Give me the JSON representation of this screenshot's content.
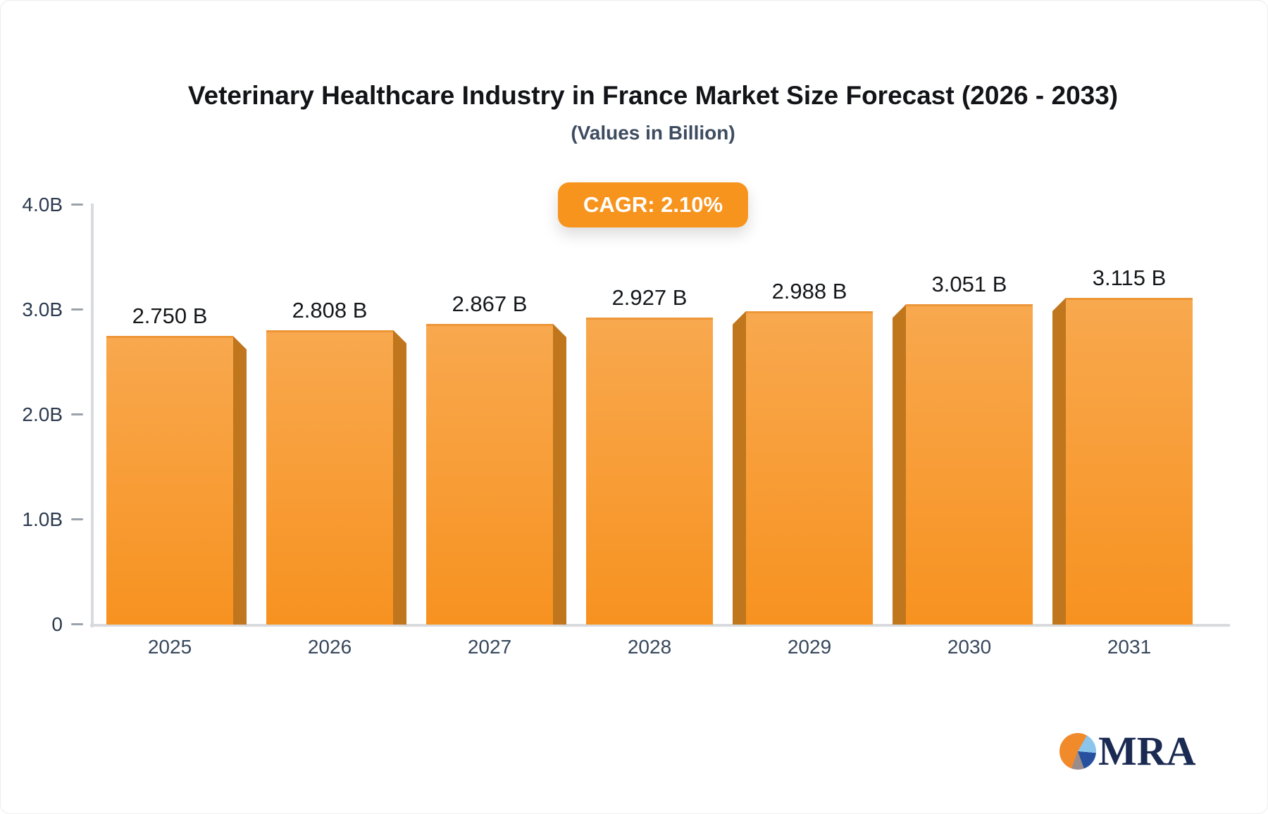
{
  "header": {
    "title": "Veterinary Healthcare Industry in France Market Size Forecast (2026 - 2033)",
    "subtitle": "(Values in Billion)",
    "cagr_label": "CAGR: 2.10%"
  },
  "chart_data": {
    "type": "bar",
    "title": "Veterinary Healthcare Industry in France Market Size Forecast (2026 - 2033)",
    "subtitle": "(Values in Billion)",
    "cagr": "2.10%",
    "categories": [
      "2025",
      "2026",
      "2027",
      "2028",
      "2029",
      "2030",
      "2031"
    ],
    "values": [
      2.75,
      2.808,
      2.867,
      2.927,
      2.988,
      3.051,
      3.115
    ],
    "value_labels": [
      "2.750 B",
      "2.808 B",
      "2.867 B",
      "2.927 B",
      "2.988 B",
      "3.051 B",
      "3.115 B"
    ],
    "unit": "Billion",
    "ylim": [
      0,
      4
    ],
    "yticks": [
      {
        "value": 0,
        "label": "0"
      },
      {
        "value": 1,
        "label": "1.0B"
      },
      {
        "value": 2,
        "label": "2.0B"
      },
      {
        "value": 3,
        "label": "3.0B"
      },
      {
        "value": 4,
        "label": "4.0B"
      }
    ],
    "grid": false,
    "legend_position": "none",
    "bar_face_top_color": "#F8A84E",
    "bar_face_bottom_color": "#F79220",
    "bar_side_color": "#C0761D",
    "axis_line_color": "#D8DADE",
    "tick_color": "#9AA2AB",
    "badge_color": "#F7941E"
  },
  "logo": {
    "text": "MRA",
    "navy": "#1B2A52",
    "pie_orange": "#F08A2B",
    "pie_light_blue": "#8CC5EC",
    "pie_dark_blue": "#27519E",
    "pie_gray": "#9B8C8C"
  }
}
